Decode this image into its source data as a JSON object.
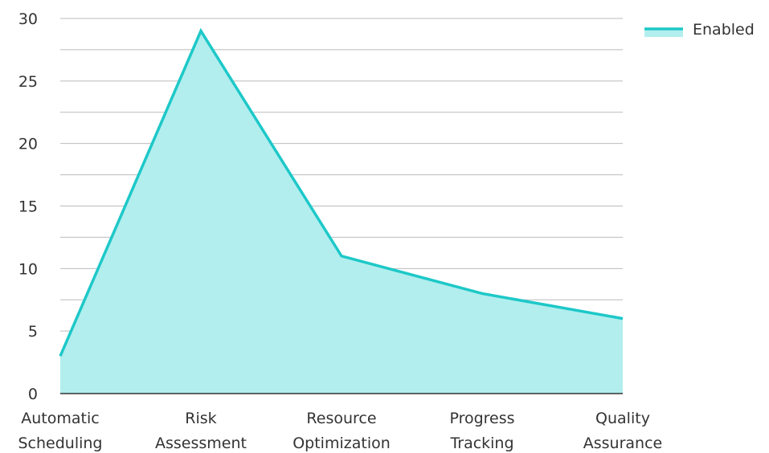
{
  "chart_data": {
    "type": "area",
    "categories": [
      [
        "Automatic",
        "Scheduling"
      ],
      [
        "Risk",
        "Assessment"
      ],
      [
        "Resource",
        "Optimization"
      ],
      [
        "Progress",
        "Tracking"
      ],
      [
        "Quality",
        "Assurance"
      ]
    ],
    "series": [
      {
        "name": "Enabled",
        "values": [
          3,
          29,
          11,
          8,
          6
        ]
      }
    ],
    "ylim": [
      0,
      30
    ],
    "yticks": [
      0,
      5,
      10,
      15,
      20,
      25,
      30
    ],
    "grid": true,
    "legend_position": "top-right",
    "colors": {
      "line": "#1ec8c8",
      "fill": "#b2eeee",
      "grid": "#bbbbbb",
      "axis": "#333333"
    }
  }
}
